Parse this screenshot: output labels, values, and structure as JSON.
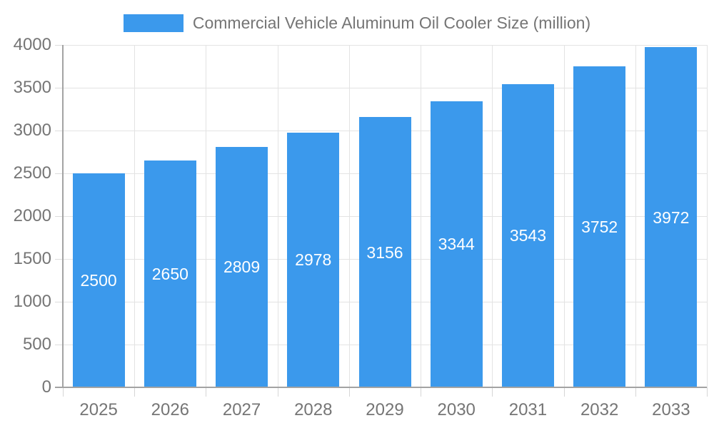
{
  "legend": {
    "label": "Commercial Vehicle Aluminum Oil Cooler Size (million)",
    "swatch_color": "#3B99EC"
  },
  "chart_data": {
    "type": "bar",
    "title": "Commercial Vehicle Aluminum Oil Cooler Size (million)",
    "categories": [
      "2025",
      "2026",
      "2027",
      "2028",
      "2029",
      "2030",
      "2031",
      "2032",
      "2033"
    ],
    "values": [
      2500,
      2650,
      2809,
      2978,
      3156,
      3344,
      3543,
      3752,
      3972
    ],
    "xlabel": "",
    "ylabel": "",
    "ylim": [
      0,
      4000
    ],
    "yticks": [
      0,
      500,
      1000,
      1500,
      2000,
      2500,
      3000,
      3500,
      4000
    ],
    "grid": true,
    "legend_position": "top-center",
    "bar_color": "#3B99EC",
    "value_label_color": "#FFFFFF",
    "tick_label_color": "#757575",
    "grid_color": "#E3E3E3",
    "axis_line_color": "#A3A3A3",
    "background_color": "#FFFFFF"
  }
}
